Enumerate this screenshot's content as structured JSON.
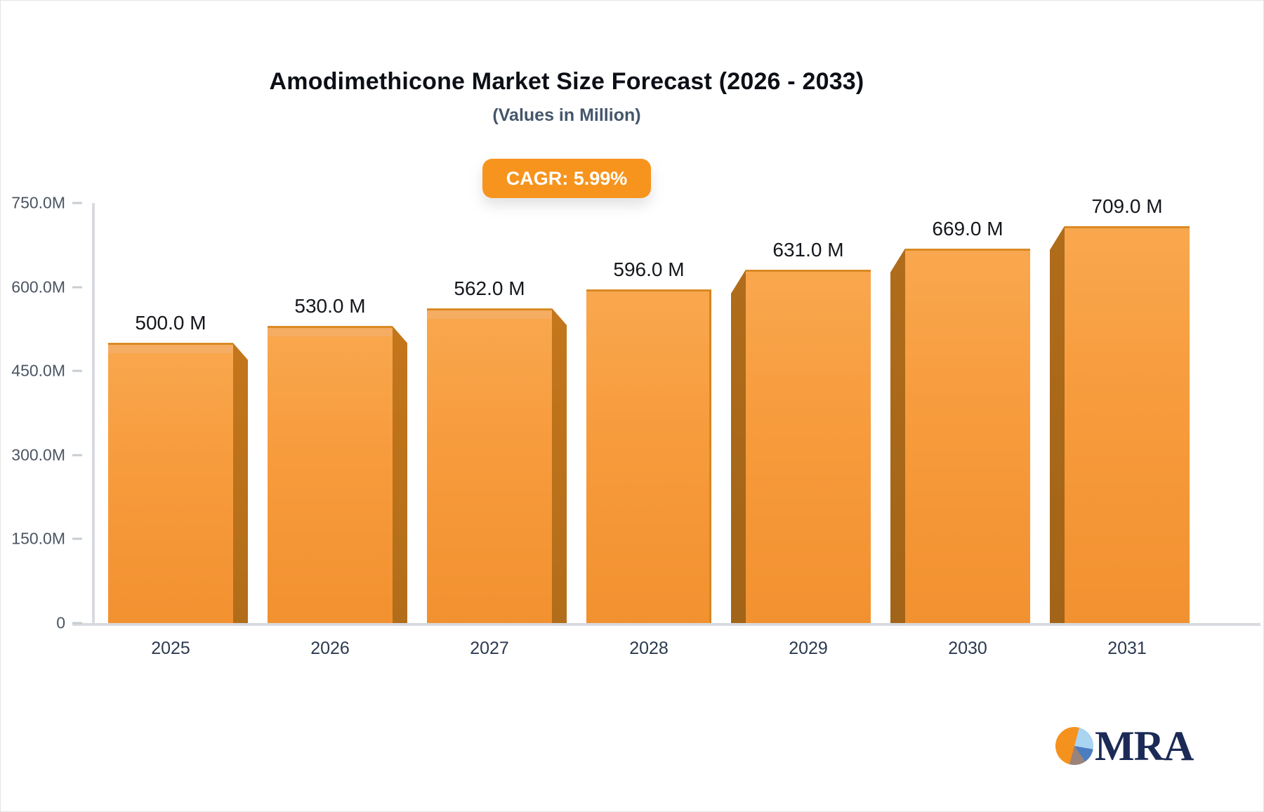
{
  "header": {
    "title": "Amodimethicone Market Size Forecast (2026 - 2033)",
    "subtitle": "(Values in Million)",
    "badge_label": "CAGR: 5.99%",
    "badge_color": "#f7941d"
  },
  "chart_data": {
    "type": "bar",
    "title": "Amodimethicone Market Size Forecast (2026 - 2033)",
    "subtitle": "(Values in Million)",
    "cagr_badge": "CAGR: 5.99%",
    "categories": [
      "2025",
      "2026",
      "2027",
      "2028",
      "2029",
      "2030",
      "2031"
    ],
    "values": [
      500,
      530,
      562,
      596,
      631,
      669,
      709
    ],
    "value_labels": [
      "500.0 M",
      "530.0 M",
      "562.0 M",
      "596.0 M",
      "631.0 M",
      "669.0 M",
      "709.0 M"
    ],
    "unit": "Million",
    "yticks": [
      "0",
      "150.0M",
      "300.0M",
      "450.0M",
      "600.0M",
      "750.0M"
    ],
    "ytick_values": [
      0,
      150,
      300,
      450,
      600,
      750
    ],
    "ylim": [
      0,
      750
    ],
    "grid": false,
    "legend": "none",
    "bar_color": "#f79b3c",
    "bar_side_color": "#b26d1a",
    "bar_top_color": "#f4ad62"
  },
  "logo": {
    "text": "MRA",
    "pie_colors": [
      "#f5921e",
      "#a9d4f2",
      "#4c7dbf",
      "#99837b"
    ],
    "text_color": "#1c2a56"
  }
}
